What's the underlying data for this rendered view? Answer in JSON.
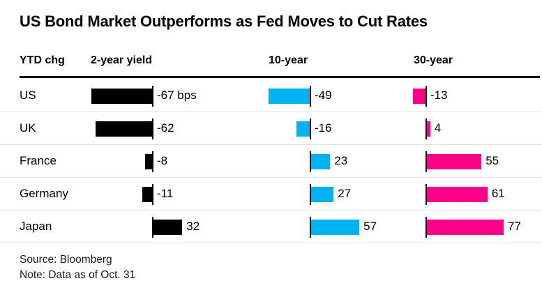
{
  "title": "US Bond Market Outperforms as Fed Moves to Cut Rates",
  "header": {
    "ytd_label": "YTD chg",
    "columns": [
      "2-year yield",
      "10-year",
      "30-year"
    ]
  },
  "chart_data": {
    "type": "bar",
    "orientation": "horizontal",
    "unit": "bps",
    "title": "US Bond Market Outperforms as Fed Moves to Cut Rates",
    "categories": [
      "US",
      "UK",
      "France",
      "Germany",
      "Japan"
    ],
    "series": [
      {
        "name": "2-year yield",
        "color": "#000000",
        "values": [
          -67,
          -62,
          -8,
          -11,
          32
        ],
        "value_labels": [
          "-67 bps",
          "-62",
          "-8",
          "-11",
          "32"
        ]
      },
      {
        "name": "10-year",
        "color": "#00b2f2",
        "values": [
          -49,
          -16,
          23,
          27,
          57
        ],
        "value_labels": [
          "-49",
          "-16",
          "23",
          "27",
          "57"
        ]
      },
      {
        "name": "30-year",
        "color": "#ff0088",
        "values": [
          -13,
          4,
          55,
          61,
          77
        ],
        "value_labels": [
          "-13",
          "4",
          "55",
          "61",
          "77"
        ]
      }
    ],
    "baseline": 0,
    "grid": "off",
    "legend_position": "column-headers"
  },
  "footer": {
    "source": "Source: Bloomberg",
    "note": "Note: Data as of Oct. 31"
  }
}
